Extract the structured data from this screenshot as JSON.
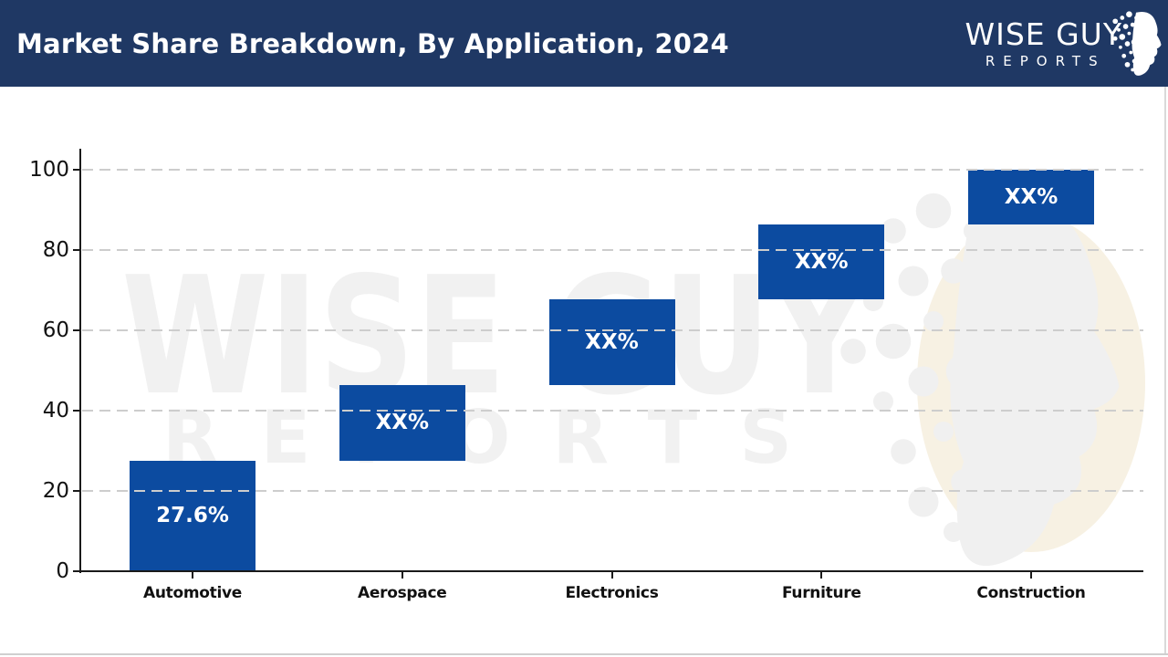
{
  "header": {
    "title": "Market Share Breakdown, By Application, 2024",
    "logo": {
      "line1": "WISE GUY",
      "line2": "REPORTS"
    }
  },
  "watermark": {
    "line1": "WISE GUY",
    "line2": "REPORTS"
  },
  "chart_data": {
    "type": "bar",
    "variant": "floating-waterfall",
    "title": "Market Share Breakdown, By Application, 2024",
    "categories": [
      "Automotive",
      "Aerospace",
      "Electronics",
      "Furniture",
      "Construction"
    ],
    "segments": [
      {
        "category": "Automotive",
        "start": 0,
        "end": 27.6,
        "label": "27.6%"
      },
      {
        "category": "Aerospace",
        "start": 27.6,
        "end": 46.3,
        "label": "XX%"
      },
      {
        "category": "Electronics",
        "start": 46.3,
        "end": 67.7,
        "label": "XX%"
      },
      {
        "category": "Furniture",
        "start": 67.7,
        "end": 86.4,
        "label": "XX%"
      },
      {
        "category": "Construction",
        "start": 86.4,
        "end": 100,
        "label": "XX%"
      }
    ],
    "y_ticks": [
      0,
      20,
      40,
      60,
      80,
      100
    ],
    "ylim": [
      0,
      105
    ],
    "xlabel": "",
    "ylabel": "",
    "grid": "horizontal-dashed",
    "legend": "none",
    "colors": {
      "bar": "#0c4ba0",
      "bar_label": "#ffffff",
      "header_bg": "#1f3864",
      "grid": "#cdcdcd",
      "axis": "#1a1a1a",
      "watermark": "#f1f1f1"
    }
  }
}
